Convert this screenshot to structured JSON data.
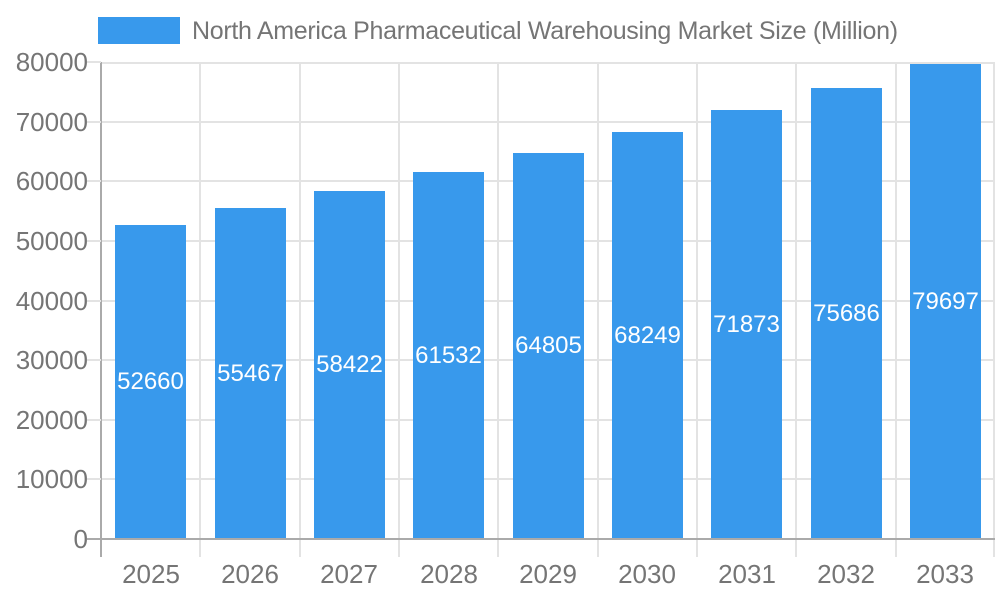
{
  "chart_data": {
    "type": "bar",
    "title": "North America Pharmaceutical Warehousing Market Size (Million)",
    "legend": {
      "label": "North America Pharmaceutical Warehousing Market Size (Million)",
      "position": "top"
    },
    "categories": [
      "2025",
      "2026",
      "2027",
      "2028",
      "2029",
      "2030",
      "2031",
      "2032",
      "2033"
    ],
    "series": [
      {
        "name": "North America Pharmaceutical Warehousing Market Size (Million)",
        "values": [
          52660,
          55467,
          58422,
          61532,
          64805,
          68249,
          71873,
          75686,
          79697
        ]
      }
    ],
    "bar_value_labels": [
      "52660",
      "55467",
      "58422",
      "61532",
      "64805",
      "68249",
      "71873",
      "75686",
      "79697"
    ],
    "xlabel": "",
    "ylabel": "",
    "ylim": [
      0,
      80000
    ],
    "ytick_step": 10000,
    "ytick_labels": [
      "0",
      "10000",
      "20000",
      "30000",
      "40000",
      "50000",
      "60000",
      "70000",
      "80000"
    ],
    "grid": true,
    "colors": {
      "bar": "#3899EC",
      "axis_line": "#AAAAAA",
      "grid_line": "#E3E3E3",
      "axis_text": "#757575",
      "bar_label_text": "#FFFFFF",
      "background": "#FFFFFF"
    }
  }
}
